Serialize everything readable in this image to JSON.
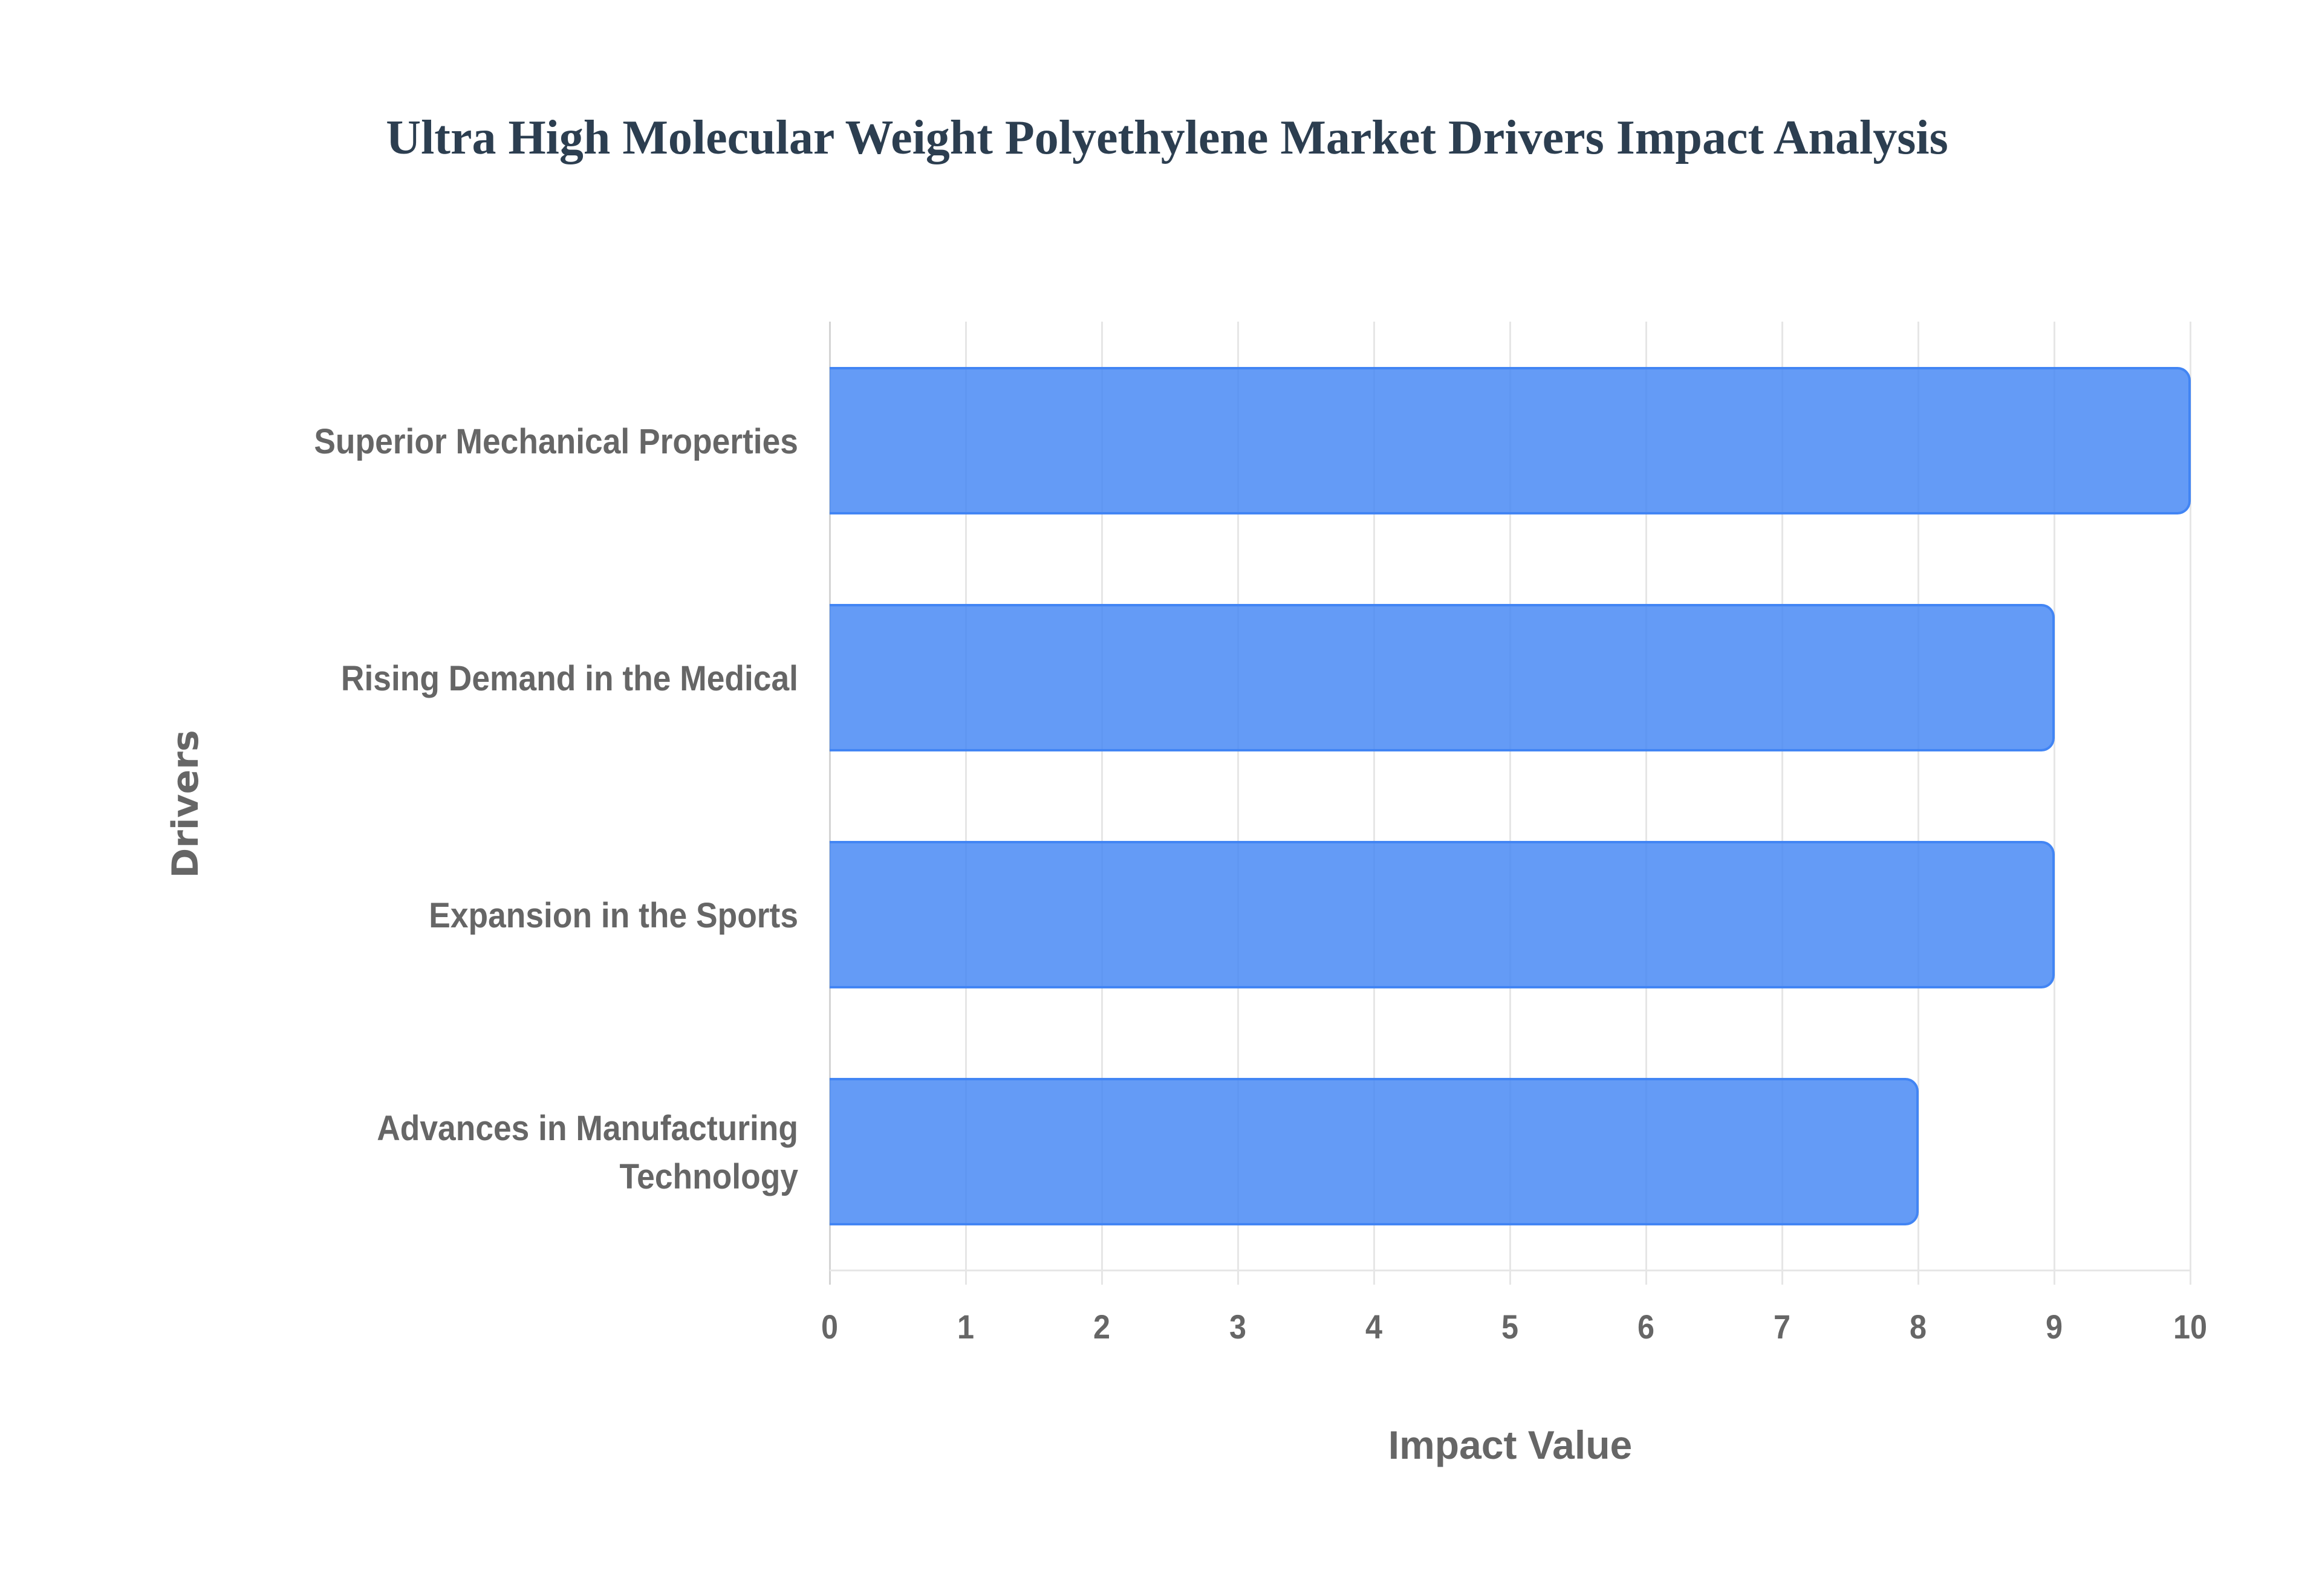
{
  "title": "Ultra High Molecular Weight Polyethylene Market Drivers Impact Analysis",
  "colors": {
    "bar_fill": "#6199F5",
    "bar_border": "#4285F4",
    "title": "#2C3E50",
    "axis_text": "#666666",
    "grid": "#E6E6E6"
  },
  "axes": {
    "x_title": "Impact Value",
    "y_title": "Drivers",
    "x_ticks": [
      "0",
      "1",
      "2",
      "3",
      "4",
      "5",
      "6",
      "7",
      "8",
      "9",
      "10"
    ]
  },
  "categories": [
    {
      "label_line1": "Superior Mechanical Properties",
      "label_line2": "",
      "value": 10
    },
    {
      "label_line1": "Rising Demand in the Medical",
      "label_line2": "",
      "value": 9
    },
    {
      "label_line1": "Expansion in the Sports",
      "label_line2": "",
      "value": 9
    },
    {
      "label_line1": "Advances in Manufacturing",
      "label_line2": "Technology",
      "value": 8
    }
  ],
  "chart_data": {
    "type": "bar",
    "orientation": "horizontal",
    "title": "Ultra High Molecular Weight Polyethylene Market Drivers Impact Analysis",
    "categories": [
      "Superior Mechanical Properties",
      "Rising Demand in the Medical",
      "Expansion in the Sports",
      "Advances in Manufacturing Technology"
    ],
    "values": [
      10,
      9,
      9,
      8
    ],
    "xlabel": "Impact Value",
    "ylabel": "Drivers",
    "xlim": [
      0,
      10
    ],
    "x_ticks": [
      0,
      1,
      2,
      3,
      4,
      5,
      6,
      7,
      8,
      9,
      10
    ],
    "grid": true,
    "legend": false
  }
}
